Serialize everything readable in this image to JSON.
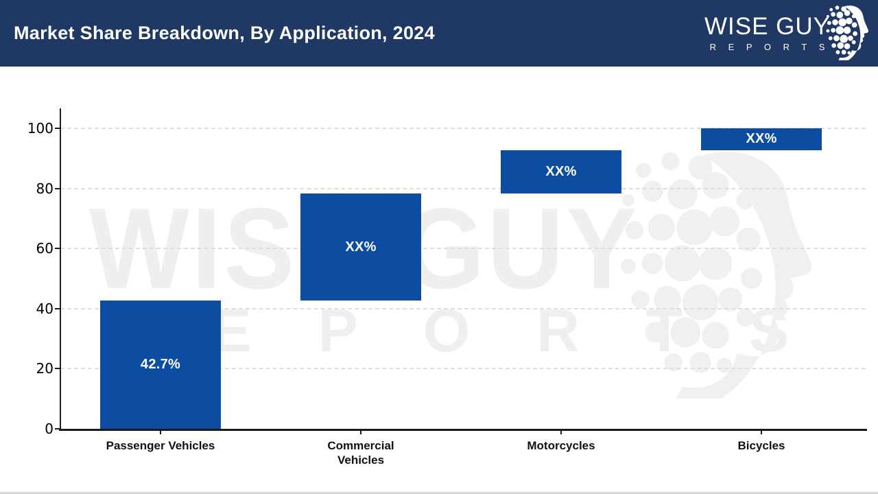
{
  "header": {
    "title": "Market Share Breakdown, By Application, 2024",
    "logo": {
      "name": "WISE GUY",
      "subtext": "R E P O R T S"
    }
  },
  "watermark": {
    "line1": "WISE GUY",
    "line2": "R E P O R T S"
  },
  "colors": {
    "header_bg": "#1f3864",
    "bar": "#0d4da1",
    "bar_label": "#ffffff",
    "grid": "#dedede",
    "axis": "#1a1a1a",
    "watermark": "#efefef"
  },
  "chart_data": {
    "type": "bar",
    "variant": "floating-waterfall",
    "title": "Market Share Breakdown, By Application, 2024",
    "categories": [
      "Passenger Vehicles",
      "Commercial\nVehicles",
      "Motorcycles",
      "Bicycles"
    ],
    "segments": [
      {
        "category": "Passenger Vehicles",
        "start": 0,
        "end": 42.7,
        "label": "42.7%"
      },
      {
        "category": "Commercial Vehicles",
        "start": 42.7,
        "end": 78.2,
        "label": "XX%"
      },
      {
        "category": "Motorcycles",
        "start": 78.2,
        "end": 92.8,
        "label": "XX%"
      },
      {
        "category": "Bicycles",
        "start": 92.8,
        "end": 100,
        "label": "XX%"
      }
    ],
    "y_ticks": [
      0,
      20,
      40,
      60,
      80,
      100
    ],
    "ylim": [
      0,
      106
    ],
    "xlabel": "",
    "ylabel": "",
    "grid": {
      "horizontal": true,
      "style": "dashed"
    },
    "legend": "none",
    "bar_color": "#0d4da1"
  }
}
